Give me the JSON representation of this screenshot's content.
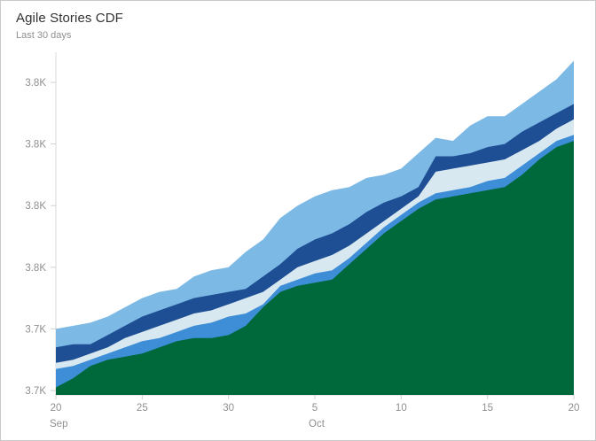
{
  "widget": {
    "title": "Agile Stories CDF",
    "subtitle": "Last 30 days"
  },
  "colors": {
    "background": "#FFFFFF",
    "card_border": "#C9C9C9",
    "title_text": "#333333",
    "subtitle_text": "#8F8F8F",
    "axis_label": "#8F8F8F",
    "axis_line": "#D9D9D9",
    "tick_mark": "#CFCFCF"
  },
  "chart_data": {
    "type": "area",
    "stacked": true,
    "title": "Agile Stories CDF",
    "subtitle": "Last 30 days",
    "legend": "none",
    "grid": "none",
    "xlabel": "",
    "ylabel": "",
    "x_unit": "day",
    "x_range_labels": [
      "Sep 20",
      "Oct 20"
    ],
    "n_points": 31,
    "x_ticks": [
      {
        "pos": 0,
        "label": "20",
        "month": "Sep"
      },
      {
        "pos": 5,
        "label": "25"
      },
      {
        "pos": 10,
        "label": "30"
      },
      {
        "pos": 15,
        "label": "5",
        "month": "Oct"
      },
      {
        "pos": 20,
        "label": "10"
      },
      {
        "pos": 25,
        "label": "15"
      },
      {
        "pos": 30,
        "label": "20"
      }
    ],
    "y_axis": {
      "min": 3720,
      "max": 3830,
      "tick_interval": 20,
      "tick_values": [
        3720,
        3740,
        3760,
        3780,
        3800,
        3820
      ],
      "tick_labels": [
        "3.7K",
        "3.7K",
        "3.8K",
        "3.8K",
        "3.8K",
        "3.8K"
      ]
    },
    "series_note": "No legend shown; bands identified by fill color, bottom of stack first. Values are the cumulative stack-top (running total of stories) at each day, read from the chart.",
    "series": [
      {
        "name": "band-green-bottom",
        "color": "#00693C",
        "cumulative_top": [
          3721,
          3724,
          3728,
          3730,
          3731,
          3732,
          3734,
          3736,
          3737,
          3737,
          3738,
          3741,
          3747,
          3752,
          3754,
          3755,
          3756,
          3761,
          3766,
          3771,
          3775,
          3779,
          3782,
          3783,
          3784,
          3785,
          3786,
          3790,
          3795,
          3799,
          3801
        ]
      },
      {
        "name": "band-medium-blue",
        "color": "#3E8ED7",
        "cumulative_top": [
          3727,
          3728,
          3730,
          3732,
          3734,
          3736,
          3737,
          3739,
          3741,
          3742,
          3744,
          3745,
          3748,
          3754,
          3756,
          3758,
          3759,
          3763,
          3768,
          3773,
          3777,
          3781,
          3784,
          3785,
          3786,
          3788,
          3789,
          3793,
          3797,
          3801,
          3803
        ]
      },
      {
        "name": "band-pale-blue",
        "color": "#D8E8F0",
        "cumulative_top": [
          3729,
          3730,
          3732,
          3734,
          3737,
          3739,
          3741,
          3743,
          3745,
          3746,
          3748,
          3750,
          3752,
          3756,
          3760,
          3762,
          3764,
          3767,
          3771,
          3775,
          3779,
          3783,
          3791,
          3792,
          3793,
          3794,
          3795,
          3798,
          3801,
          3805,
          3808
        ]
      },
      {
        "name": "band-navy",
        "color": "#1E4E94",
        "cumulative_top": [
          3734,
          3735,
          3735,
          3738,
          3741,
          3744,
          3746,
          3748,
          3750,
          3751,
          3752,
          3753,
          3757,
          3761,
          3766,
          3769,
          3771,
          3774,
          3778,
          3781,
          3783,
          3786,
          3796,
          3796,
          3797,
          3799,
          3800,
          3804,
          3807,
          3810,
          3813
        ]
      },
      {
        "name": "band-light-blue-top",
        "color": "#7CB9E5",
        "cumulative_top": [
          3740,
          3741,
          3742,
          3744,
          3747,
          3750,
          3752,
          3753,
          3757,
          3759,
          3760,
          3765,
          3769,
          3776,
          3780,
          3783,
          3785,
          3786,
          3789,
          3790,
          3792,
          3797,
          3802,
          3801,
          3806,
          3809,
          3809,
          3813,
          3817,
          3821,
          3827
        ]
      }
    ]
  }
}
